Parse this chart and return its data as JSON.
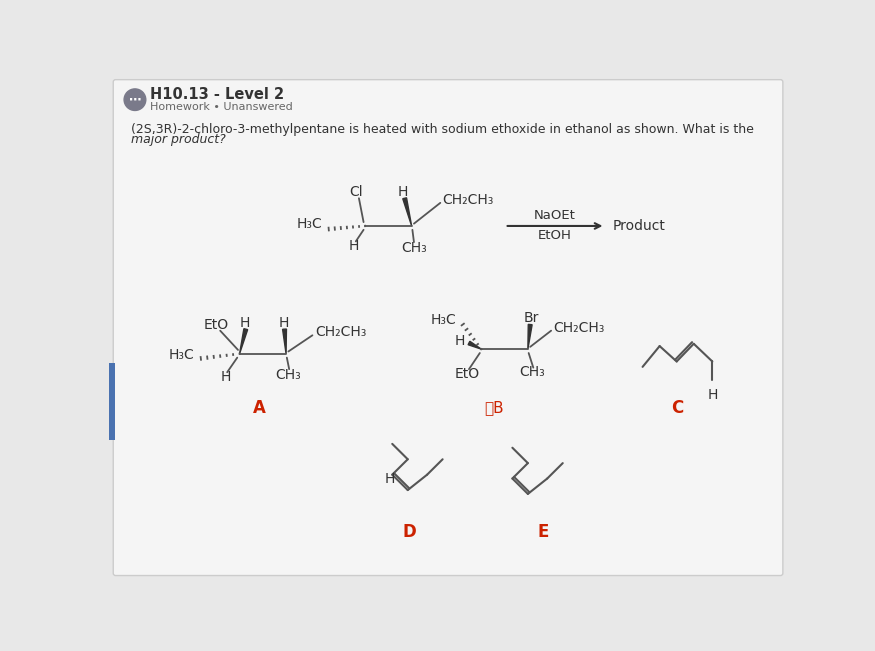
{
  "title": "H10.13 - Level 2",
  "subtitle": "Homework • Unanswered",
  "question": "(2S,3R)-2-chloro-3-methylpentane is heated with sodium ethoxide in ethanol as shown. What is the major product?",
  "bg_color": "#e8e8e8",
  "panel_color": "#f5f5f5",
  "text_color": "#333333",
  "bond_color": "#555555",
  "red_color": "#cc2200",
  "icon_color": "#7a7a8a"
}
